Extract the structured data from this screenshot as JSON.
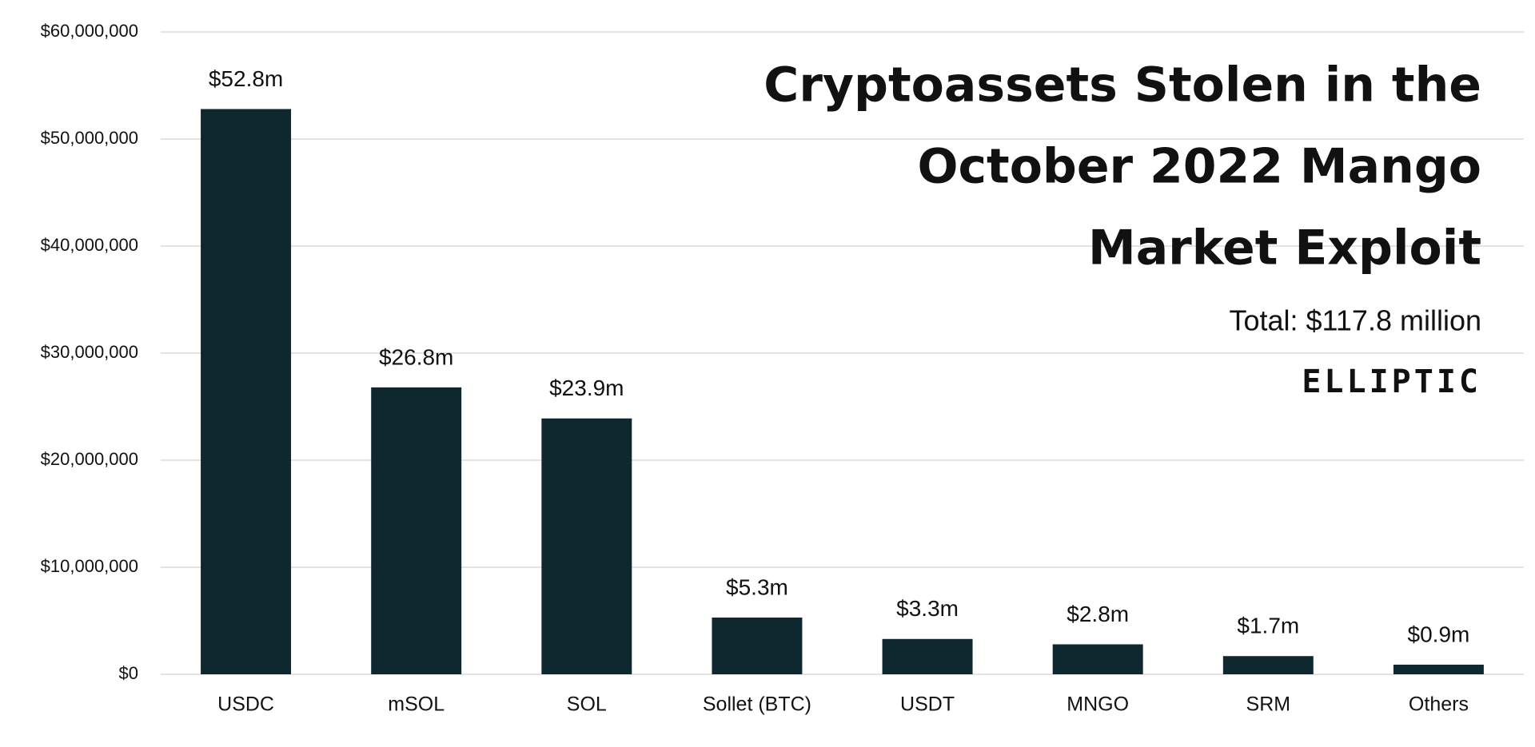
{
  "chart_data": {
    "type": "bar",
    "title": [
      "Cryptoassets Stolen in the",
      "October 2022 Mango",
      "Market Exploit"
    ],
    "subtitle": "Total: $117.8 million",
    "logo": "ELLIPTIC",
    "categories": [
      "USDC",
      "mSOL",
      "SOL",
      "Sollet (BTC)",
      "USDT",
      "MNGO",
      "SRM",
      "Others"
    ],
    "values": [
      52800000,
      26800000,
      23900000,
      5300000,
      3300000,
      2800000,
      1700000,
      900000
    ],
    "value_labels": [
      "$52.8m",
      "$26.8m",
      "$23.9m",
      "$5.3m",
      "$3.3m",
      "$2.8m",
      "$1.7m",
      "$0.9m"
    ],
    "color": "#0f2830",
    "ylim": [
      0,
      60000000
    ],
    "yticks": [
      {
        "value": 0,
        "label": "$0"
      },
      {
        "value": 10000000,
        "label": "$10,000,000"
      },
      {
        "value": 20000000,
        "label": "$20,000,000"
      },
      {
        "value": 30000000,
        "label": "$30,000,000"
      },
      {
        "value": 40000000,
        "label": "$40,000,000"
      },
      {
        "value": 50000000,
        "label": "$50,000,000"
      },
      {
        "value": 60000000,
        "label": "$60,000,000"
      }
    ],
    "grid": true
  }
}
